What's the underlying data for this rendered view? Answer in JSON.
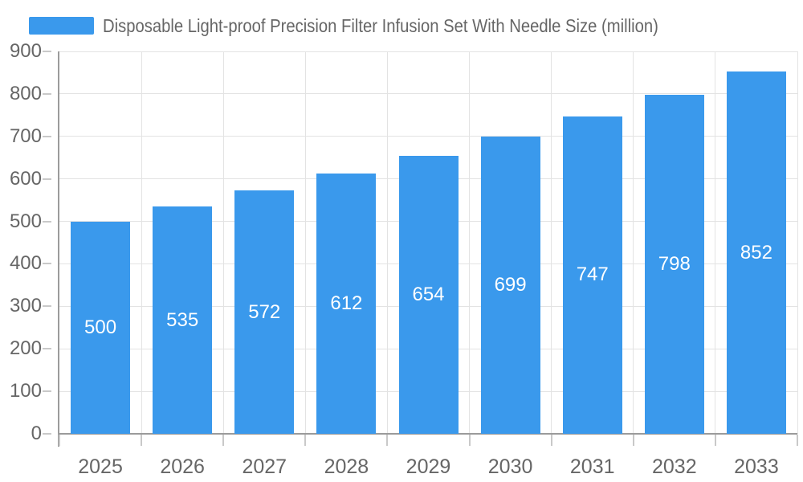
{
  "legend": {
    "label": "Disposable Light-proof Precision Filter Infusion Set With Needle Size (million)",
    "swatch_color": "#3A99EC"
  },
  "chart_data": {
    "type": "bar",
    "title": "",
    "categories": [
      "2025",
      "2026",
      "2027",
      "2028",
      "2029",
      "2030",
      "2031",
      "2032",
      "2033"
    ],
    "series": [
      {
        "name": "Disposable Light-proof Precision Filter Infusion Set With Needle Size (million)",
        "values": [
          500,
          535,
          572,
          612,
          654,
          699,
          747,
          798,
          852
        ],
        "color": "#3A99EC"
      }
    ],
    "xlabel": "",
    "ylabel": "",
    "ylim": [
      0,
      900
    ],
    "yticks": [
      0,
      100,
      200,
      300,
      400,
      500,
      600,
      700,
      800,
      900
    ],
    "grid": true,
    "value_labels": "inside-center",
    "value_label_color": "#FFFFFF",
    "legend_position": "top-left"
  },
  "style": {
    "background": "#FFFFFF",
    "bar_color": "#3A99EC",
    "grid_color": "#E3E3E3",
    "axis_line_color": "#9B9B9B",
    "tick_color": "#C9C9C9",
    "axis_label_color": "#666666"
  }
}
